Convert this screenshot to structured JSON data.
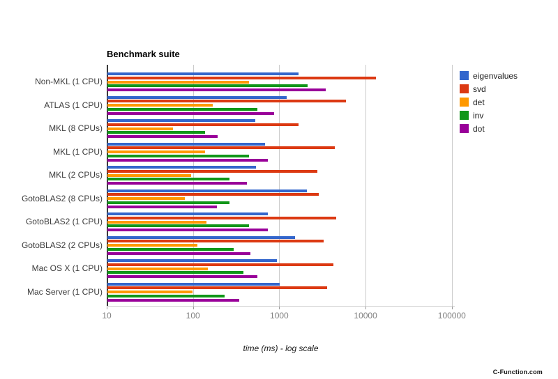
{
  "watermark": "C-Function.com",
  "chart_data": {
    "type": "bar",
    "orientation": "horizontal",
    "title": "Benchmark suite",
    "xlabel": "time (ms) - log scale",
    "x_scale": "log",
    "xlim": [
      10,
      200000
    ],
    "x_ticks": [
      10,
      100,
      1000,
      10000,
      100000
    ],
    "grid": true,
    "legend_position": "right",
    "categories": [
      "Non-MKL (1 CPU)",
      "ATLAS (1 CPU)",
      "MKL (8 CPUs)",
      "MKL (1 CPU)",
      "MKL (2 CPUs)",
      "GotoBLAS2 (8 CPUs)",
      "GotoBLAS2 (1 CPU)",
      "GotoBLAS2 (2 CPUs)",
      "Mac OS X (1 CPU)",
      "Mac Server (1 CPU)"
    ],
    "series": [
      {
        "name": "eigenvalues",
        "color": "#3366CC",
        "values": [
          1650,
          1200,
          520,
          670,
          530,
          2050,
          730,
          1500,
          920,
          1000
        ]
      },
      {
        "name": "svd",
        "color": "#DC3912",
        "values": [
          13000,
          5800,
          1650,
          4300,
          2700,
          2800,
          4500,
          3200,
          4200,
          3500
        ]
      },
      {
        "name": "det",
        "color": "#FF9900",
        "values": [
          440,
          165,
          58,
          135,
          93,
          79,
          140,
          110,
          145,
          97
        ]
      },
      {
        "name": "inv",
        "color": "#109618",
        "values": [
          2100,
          550,
          135,
          440,
          260,
          260,
          440,
          290,
          380,
          230
        ]
      },
      {
        "name": "dot",
        "color": "#990099",
        "values": [
          3400,
          860,
          190,
          730,
          410,
          185,
          730,
          450,
          550,
          335
        ]
      }
    ],
    "colors": {
      "gridline": "#cccccc",
      "axis": "#3b3b3b",
      "tick_text": "#808080",
      "category_text": "#3c3c3c",
      "background": "#ffffff"
    }
  }
}
